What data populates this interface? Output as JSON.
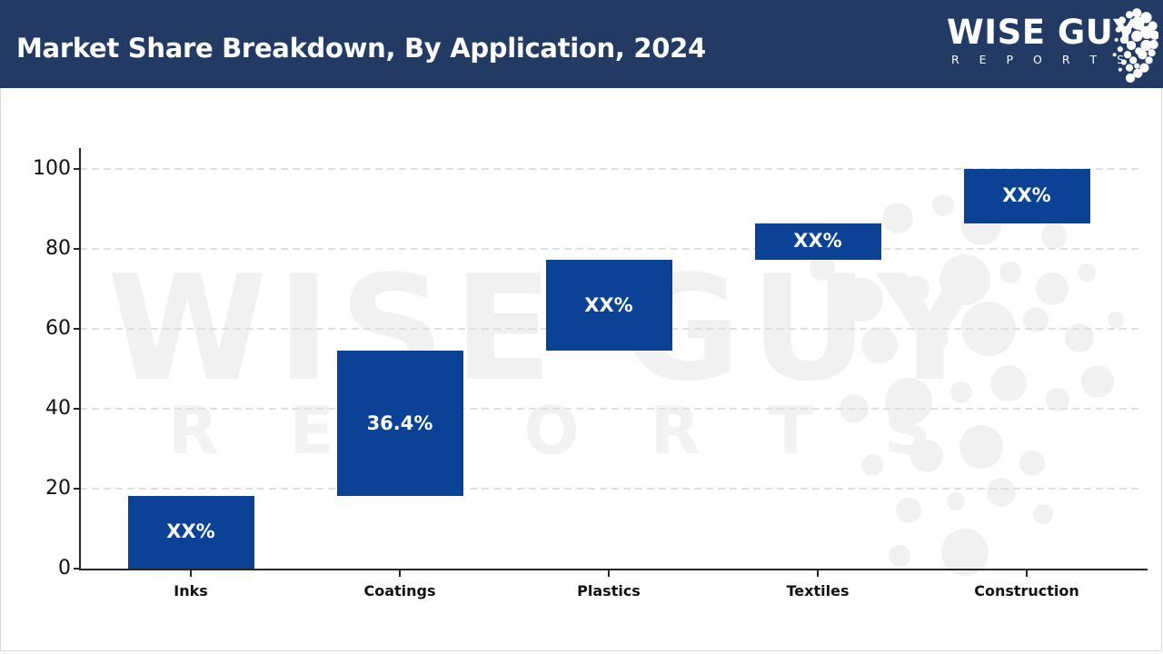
{
  "header": {
    "title": "Market Share Breakdown, By Application, 2024",
    "logo_line1": "WISE GUY",
    "logo_line2": "R E P O R T S"
  },
  "watermark": {
    "line1": "WISE GUY",
    "line2": "REPORTS"
  },
  "colors": {
    "header_bg": "#223a64",
    "bar_blue": "#0b4296",
    "grid_gray": "#e0e0e0",
    "axis_black": "#262626",
    "watermark_gray": "#f1f1f1"
  },
  "chart_data": {
    "type": "bar",
    "subtype": "floating-waterfall",
    "title": "Market Share Breakdown, By Application, 2024",
    "categories": [
      "Inks",
      "Coatings",
      "Plastics",
      "Textiles",
      "Construction"
    ],
    "bars": [
      {
        "category": "Inks",
        "from": 0,
        "to": 18.2,
        "label": "XX%"
      },
      {
        "category": "Coatings",
        "from": 18.2,
        "to": 54.5,
        "label": "36.4%"
      },
      {
        "category": "Plastics",
        "from": 54.5,
        "to": 77.3,
        "label": "XX%"
      },
      {
        "category": "Textiles",
        "from": 77.3,
        "to": 86.4,
        "label": "XX%"
      },
      {
        "category": "Construction",
        "from": 86.4,
        "to": 100,
        "label": "XX%"
      }
    ],
    "xlabel": "",
    "ylabel": "",
    "ylim": [
      0,
      105
    ],
    "yticks": [
      0,
      20,
      40,
      60,
      80,
      100
    ],
    "grid": "dashed-horizontal",
    "legend": "none",
    "bar_color": "#0b4296",
    "bar_label_color": "#ffffff"
  }
}
